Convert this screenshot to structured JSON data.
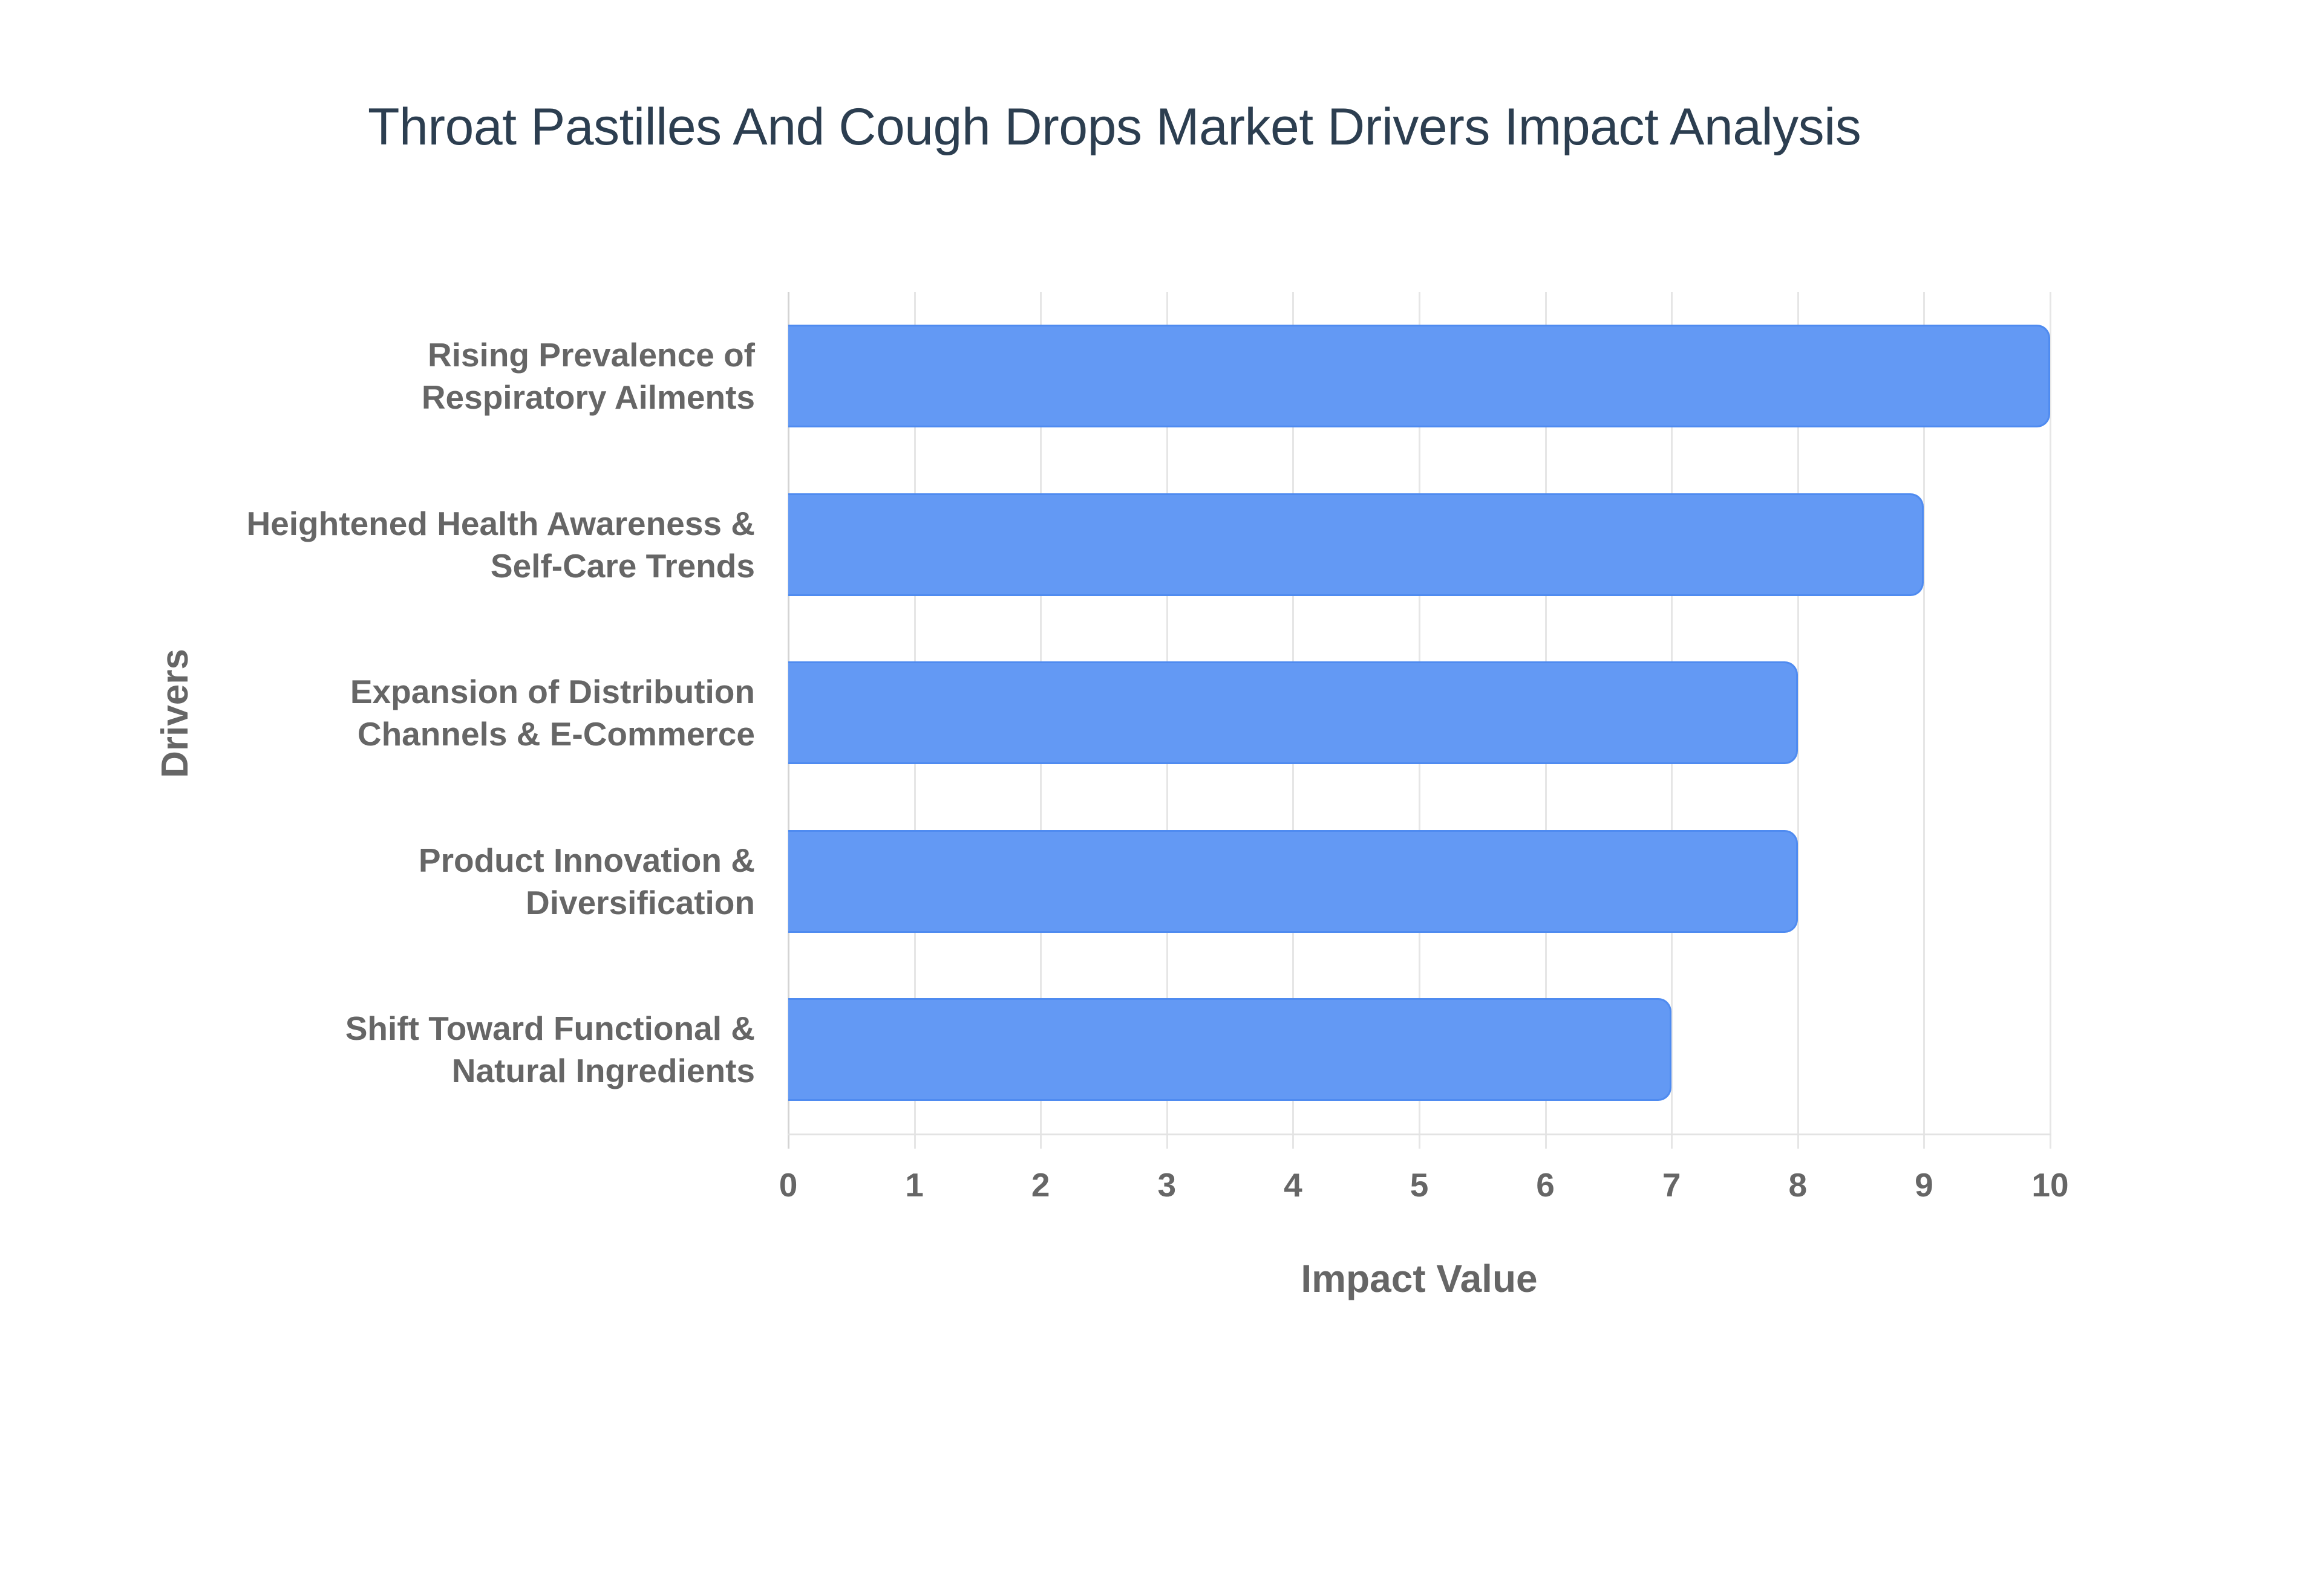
{
  "title": "Throat Pastilles And Cough Drops Market Drivers Impact Analysis",
  "axes": {
    "x_title": "Impact Value",
    "y_title": "Drivers",
    "x_ticks": [
      "0",
      "1",
      "2",
      "3",
      "4",
      "5",
      "6",
      "7",
      "8",
      "9",
      "10"
    ]
  },
  "drivers": [
    {
      "line1": "Rising Prevalence of",
      "line2": "Respiratory Ailments",
      "value": 10
    },
    {
      "line1": "Heightened Health Awareness &",
      "line2": "Self-Care Trends",
      "value": 9
    },
    {
      "line1": "Expansion of Distribution",
      "line2": "Channels & E-Commerce",
      "value": 8
    },
    {
      "line1": "Product Innovation &",
      "line2": "Diversification",
      "value": 8
    },
    {
      "line1": "Shift Toward Functional &",
      "line2": "Natural Ingredients",
      "value": 7
    }
  ],
  "colors": {
    "bar_fill": "#6399f4",
    "bar_border": "#4f8bf0",
    "title": "#2c3e50",
    "axis_text": "#666666",
    "grid": "#e6e6e6"
  },
  "chart_data": {
    "type": "bar",
    "orientation": "horizontal",
    "title": "Throat Pastilles And Cough Drops Market Drivers Impact Analysis",
    "categories": [
      "Rising Prevalence of Respiratory Ailments",
      "Heightened Health Awareness & Self-Care Trends",
      "Expansion of Distribution Channels & E-Commerce",
      "Product Innovation & Diversification",
      "Shift Toward Functional & Natural Ingredients"
    ],
    "values": [
      10,
      9,
      8,
      8,
      7
    ],
    "xlabel": "Impact Value",
    "ylabel": "Drivers",
    "xlim": [
      0,
      10
    ],
    "x_ticks": [
      0,
      1,
      2,
      3,
      4,
      5,
      6,
      7,
      8,
      9,
      10
    ],
    "grid": true,
    "legend": "none"
  }
}
